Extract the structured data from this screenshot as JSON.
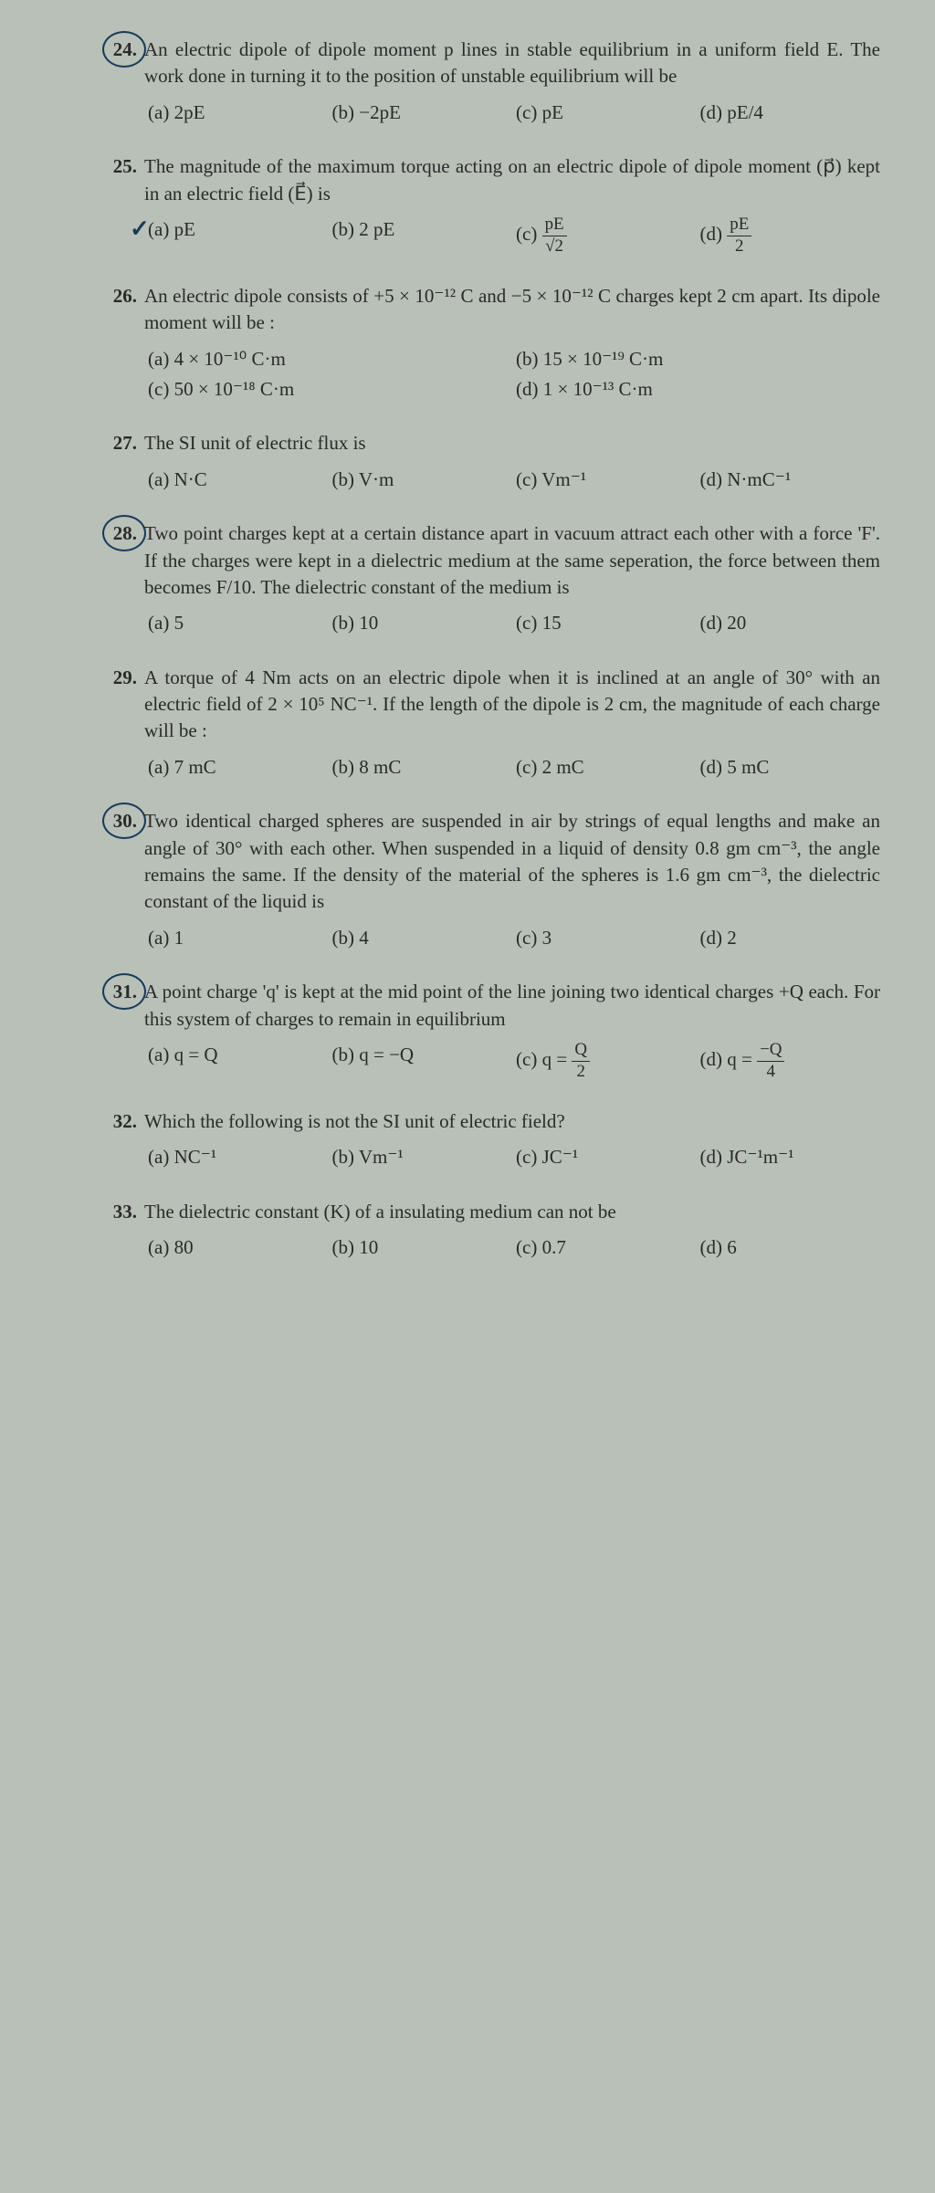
{
  "background_color": "#b8c0b8",
  "text_color": "#2a2a2a",
  "pen_color": "#1a3a5a",
  "font_family": "Georgia, serif",
  "base_fontsize": 21,
  "questions": [
    {
      "num": "24.",
      "circled": true,
      "text": "An electric dipole of dipole moment p lines in stable equilibrium in a uniform field E. The work done in turning it to the position of unstable equilibrium will be",
      "layout": "four",
      "opts": [
        {
          "k": "(a)",
          "v": "2pE",
          "marked": false
        },
        {
          "k": "(b)",
          "v": "−2pE",
          "marked": false
        },
        {
          "k": "(c)",
          "v": "pE",
          "marked": false
        },
        {
          "k": "(d)",
          "v": "pE/4",
          "marked": false
        }
      ]
    },
    {
      "num": "25.",
      "circled": false,
      "text": "The magnitude of the maximum torque acting on an electric dipole of dipole moment (p⃗) kept in an electric field (E⃗) is",
      "layout": "four",
      "opts": [
        {
          "k": "(a)",
          "v": "pE",
          "marked": true
        },
        {
          "k": "(b)",
          "v": "2 pE",
          "marked": false
        },
        {
          "k": "(c)",
          "v": "",
          "frac": {
            "num": "pE",
            "den": "√2"
          },
          "marked": false
        },
        {
          "k": "(d)",
          "v": "",
          "frac": {
            "num": "pE",
            "den": "2"
          },
          "marked": false
        }
      ]
    },
    {
      "num": "26.",
      "circled": false,
      "text": "An electric dipole consists of +5 × 10⁻¹² C and −5 × 10⁻¹² C charges kept 2 cm apart. Its dipole moment will be :",
      "layout": "two",
      "opts": [
        {
          "k": "(a)",
          "v": "4 × 10⁻¹⁰ C·m",
          "marked": false
        },
        {
          "k": "(b)",
          "v": "15 × 10⁻¹⁹ C·m",
          "marked": false
        },
        {
          "k": "(c)",
          "v": "50 × 10⁻¹⁸ C·m",
          "marked": false
        },
        {
          "k": "(d)",
          "v": "1 × 10⁻¹³ C·m",
          "marked": false
        }
      ]
    },
    {
      "num": "27.",
      "circled": false,
      "text": "The SI unit of electric flux is",
      "layout": "four",
      "opts": [
        {
          "k": "(a)",
          "v": "N·C",
          "marked": false
        },
        {
          "k": "(b)",
          "v": "V·m",
          "marked": false
        },
        {
          "k": "(c)",
          "v": "Vm⁻¹",
          "marked": false
        },
        {
          "k": "(d)",
          "v": "N·mC⁻¹",
          "marked": false
        }
      ]
    },
    {
      "num": "28.",
      "circled": true,
      "text": "Two point charges kept at a certain distance apart in vacuum attract each other with a force 'F'. If the charges were kept in a dielectric medium at the same seperation, the force between them becomes F/10. The dielectric constant of the medium is",
      "layout": "four",
      "opts": [
        {
          "k": "(a)",
          "v": "5",
          "marked": false
        },
        {
          "k": "(b)",
          "v": "10",
          "marked": false
        },
        {
          "k": "(c)",
          "v": "15",
          "marked": false
        },
        {
          "k": "(d)",
          "v": "20",
          "marked": false
        }
      ]
    },
    {
      "num": "29.",
      "circled": false,
      "text": "A torque of 4 Nm acts on an electric dipole when it is inclined at an angle of 30° with an electric field of 2 × 10⁵ NC⁻¹. If the length of the dipole is 2 cm, the magnitude of each charge will be :",
      "layout": "four",
      "opts": [
        {
          "k": "(a)",
          "v": "7 mC",
          "marked": false
        },
        {
          "k": "(b)",
          "v": "8 mC",
          "marked": false
        },
        {
          "k": "(c)",
          "v": "2 mC",
          "marked": false
        },
        {
          "k": "(d)",
          "v": "5 mC",
          "marked": false
        }
      ]
    },
    {
      "num": "30.",
      "circled": true,
      "text": "Two identical charged spheres are suspended in air by strings of equal lengths and make an angle of 30° with each other. When suspended in a liquid of density 0.8 gm cm⁻³, the angle remains the same. If the density of the material of the spheres is 1.6 gm cm⁻³, the dielectric constant of the liquid is",
      "layout": "four",
      "opts": [
        {
          "k": "(a)",
          "v": "1",
          "marked": false
        },
        {
          "k": "(b)",
          "v": "4",
          "marked": false
        },
        {
          "k": "(c)",
          "v": "3",
          "marked": false
        },
        {
          "k": "(d)",
          "v": "2",
          "marked": false
        }
      ]
    },
    {
      "num": "31.",
      "circled": true,
      "text": "A point charge 'q' is kept at the mid point of the line joining two identical charges +Q each. For this system of charges to remain in equilibrium",
      "layout": "four",
      "opts": [
        {
          "k": "(a)",
          "v": "q = Q",
          "marked": false
        },
        {
          "k": "(b)",
          "v": "q = −Q",
          "marked": false
        },
        {
          "k": "(c)",
          "v": "q = ",
          "frac": {
            "num": "Q",
            "den": "2"
          },
          "marked": false
        },
        {
          "k": "(d)",
          "v": "q = ",
          "frac": {
            "num": "−Q",
            "den": "4"
          },
          "marked": false
        }
      ]
    },
    {
      "num": "32.",
      "circled": false,
      "text": "Which the following is not the SI unit of electric field?",
      "layout": "four",
      "opts": [
        {
          "k": "(a)",
          "v": "NC⁻¹",
          "marked": false
        },
        {
          "k": "(b)",
          "v": "Vm⁻¹",
          "marked": false
        },
        {
          "k": "(c)",
          "v": "JC⁻¹",
          "marked": false
        },
        {
          "k": "(d)",
          "v": "JC⁻¹m⁻¹",
          "marked": false
        }
      ]
    },
    {
      "num": "33.",
      "circled": false,
      "text": "The dielectric constant (K) of a insulating medium can not be",
      "layout": "four",
      "opts": [
        {
          "k": "(a)",
          "v": "80",
          "marked": false
        },
        {
          "k": "(b)",
          "v": "10",
          "marked": false
        },
        {
          "k": "(c)",
          "v": "0.7",
          "marked": false
        },
        {
          "k": "(d)",
          "v": "6",
          "marked": false
        }
      ]
    }
  ]
}
